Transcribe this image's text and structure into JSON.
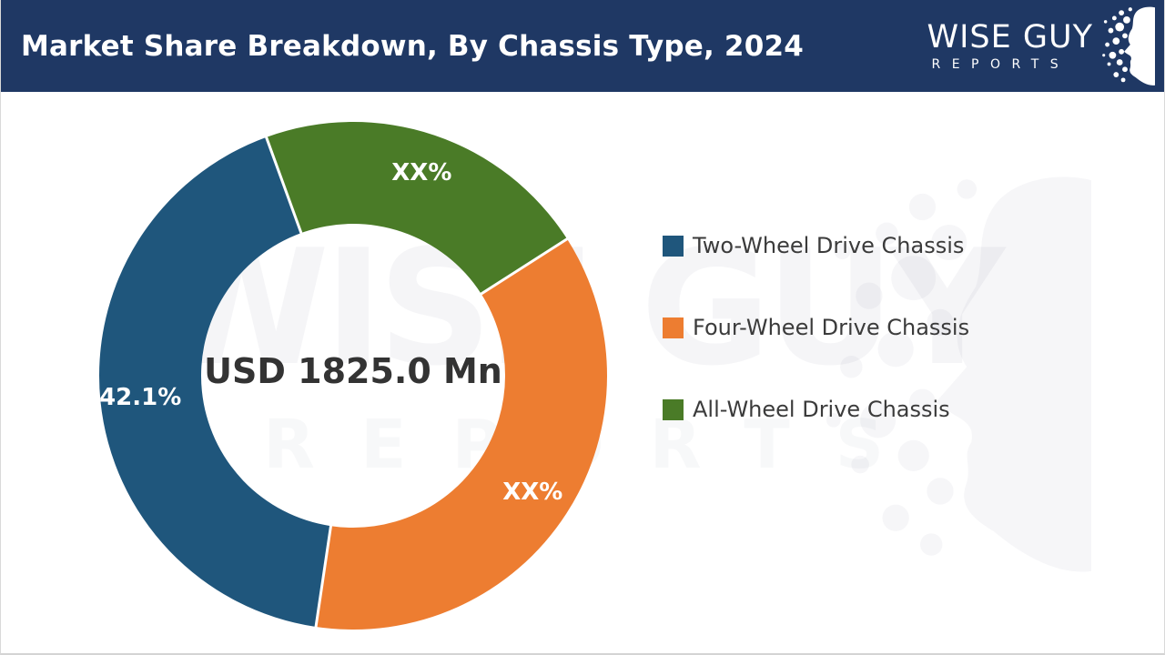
{
  "header": {
    "title": "Market Share Breakdown, By Chassis Type, 2024",
    "logo": {
      "name": "WISE GUY",
      "tagline": "REPORTS"
    }
  },
  "chart_data": {
    "type": "pie",
    "subtype": "donut",
    "title": "Market Share Breakdown, By Chassis Type, 2024",
    "center_label": "USD 1825.0 Mn",
    "start_angle_deg": 110,
    "direction": "counterclockwise",
    "inner_radius_ratio": 0.6,
    "legend_position": "right",
    "categories": [
      "Two-Wheel Drive Chassis",
      "Four-Wheel Drive Chassis",
      "All-Wheel Drive Chassis"
    ],
    "values": [
      42.1,
      36.4,
      21.5
    ],
    "value_labels": [
      "42.1%",
      "XX%",
      "XX%"
    ],
    "colors": [
      "#1f567c",
      "#ed7d31",
      "#4a7b27"
    ]
  },
  "watermark": {
    "line1": "WISE GUY",
    "line2": "REPORTS"
  },
  "colors": {
    "header_bg": "#1f3864",
    "title_text": "#ffffff",
    "center_text": "#333333",
    "legend_text": "#3b3b3b",
    "slice_label_text": "#ffffff",
    "page_border": "#d4d4d4",
    "segment_gap": "#ffffff"
  }
}
